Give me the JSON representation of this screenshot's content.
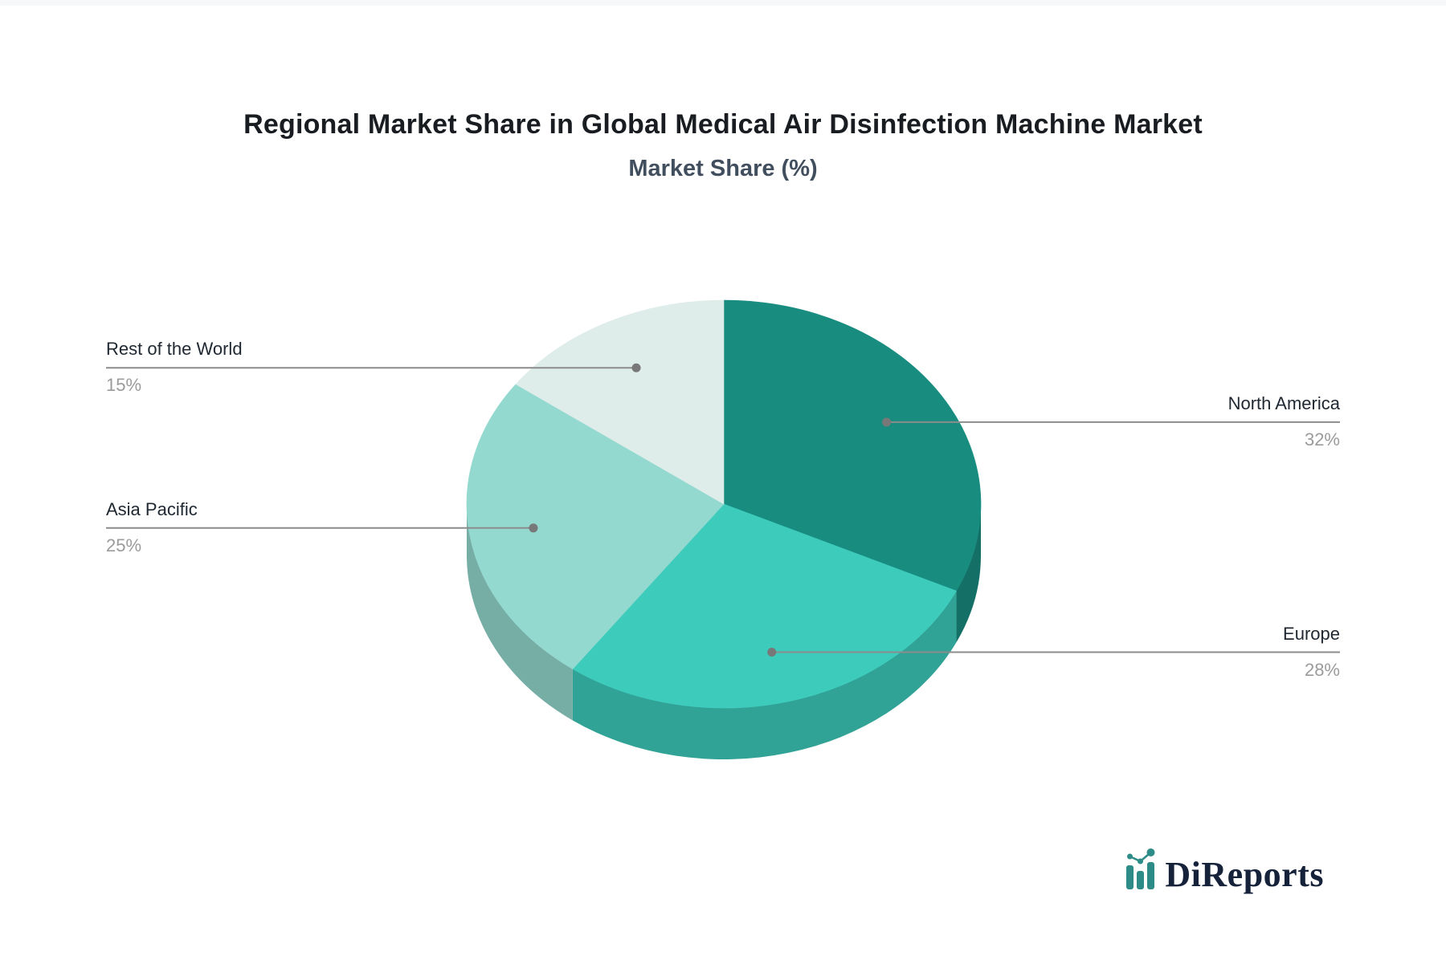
{
  "header": {
    "title": "Regional Market Share in Global Medical Air Disinfection Machine Market",
    "subtitle": "Market Share (%)"
  },
  "chart_data": {
    "type": "pie",
    "style": "3d",
    "title": "Regional Market Share in Global Medical Air Disinfection Machine Market",
    "subtitle": "Market Share (%)",
    "unit": "%",
    "start_angle_deg": 0,
    "direction": "clockwise",
    "legend_position": "callout-labels",
    "slices": [
      {
        "label": "North America",
        "value": 32,
        "display": "32%",
        "color": "#198C80",
        "side": "right"
      },
      {
        "label": "Europe",
        "value": 28,
        "display": "28%",
        "color": "#3DCBBC",
        "side": "right"
      },
      {
        "label": "Asia Pacific",
        "value": 25,
        "display": "25%",
        "color": "#93D9CF",
        "side": "left"
      },
      {
        "label": "Rest of the World",
        "value": 15,
        "display": "15%",
        "color": "#DEEDEA",
        "side": "left"
      }
    ]
  },
  "style": {
    "leader_line_color": "#8c8c8c",
    "leader_dot_color": "#787878",
    "label_text_color": "#1f2730",
    "percent_text_color": "#9b9b9b",
    "title_color": "#191d22",
    "subtitle_color": "#414e5e"
  },
  "branding": {
    "logo_text": "DiReports",
    "logo_icon": "bar-chart-trend-icon",
    "logo_text_color": "#16223a",
    "logo_icon_color": "#2d8c87"
  }
}
